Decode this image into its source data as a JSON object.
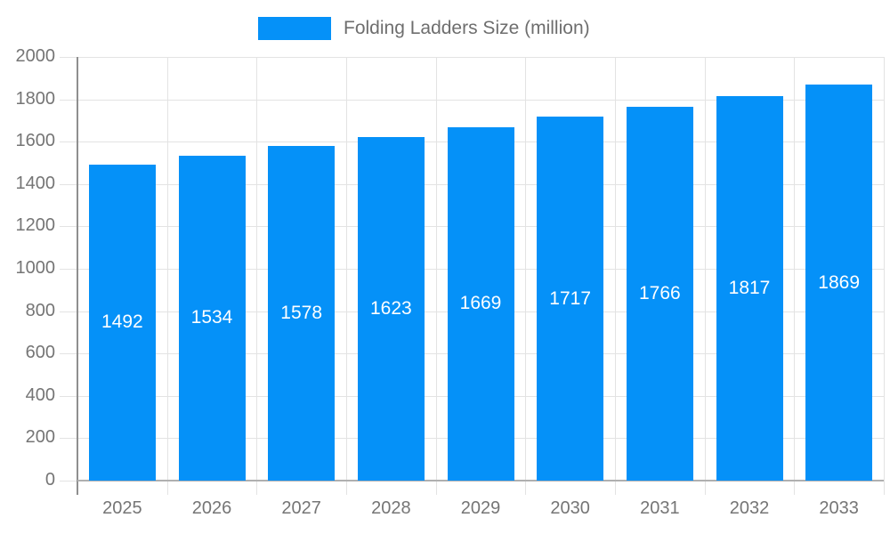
{
  "chart_data": {
    "type": "bar",
    "title": "Folding Ladders Size (million)",
    "categories": [
      "2025",
      "2026",
      "2027",
      "2028",
      "2029",
      "2030",
      "2031",
      "2032",
      "2033"
    ],
    "series": [
      {
        "name": "Folding Ladders Size (million)",
        "values": [
          1492,
          1534,
          1578,
          1623,
          1669,
          1717,
          1766,
          1817,
          1869
        ]
      }
    ],
    "value_labels": [
      1492,
      1534,
      1578,
      1623,
      1669,
      1717,
      1766,
      1817,
      1869
    ],
    "value_label_position": "inside-center",
    "xlabel": "",
    "ylabel": "",
    "ylim": [
      0,
      2000
    ],
    "yticks": [
      0,
      200,
      400,
      600,
      800,
      1000,
      1200,
      1400,
      1600,
      1800,
      2000
    ],
    "grid": "horizontal-and-vertical",
    "legend_position": "top-center",
    "colors": {
      "bar": "#0591f8",
      "value_label": "#ffffff",
      "axis_label": "#757575",
      "legend_text": "#6e6e6e",
      "gridline": "#e3e3e3",
      "tick": "#e3e3e3",
      "y_axis_line": "#8f8f8f",
      "x_axis_line": "#b0b0b0",
      "background": "#ffffff"
    }
  }
}
